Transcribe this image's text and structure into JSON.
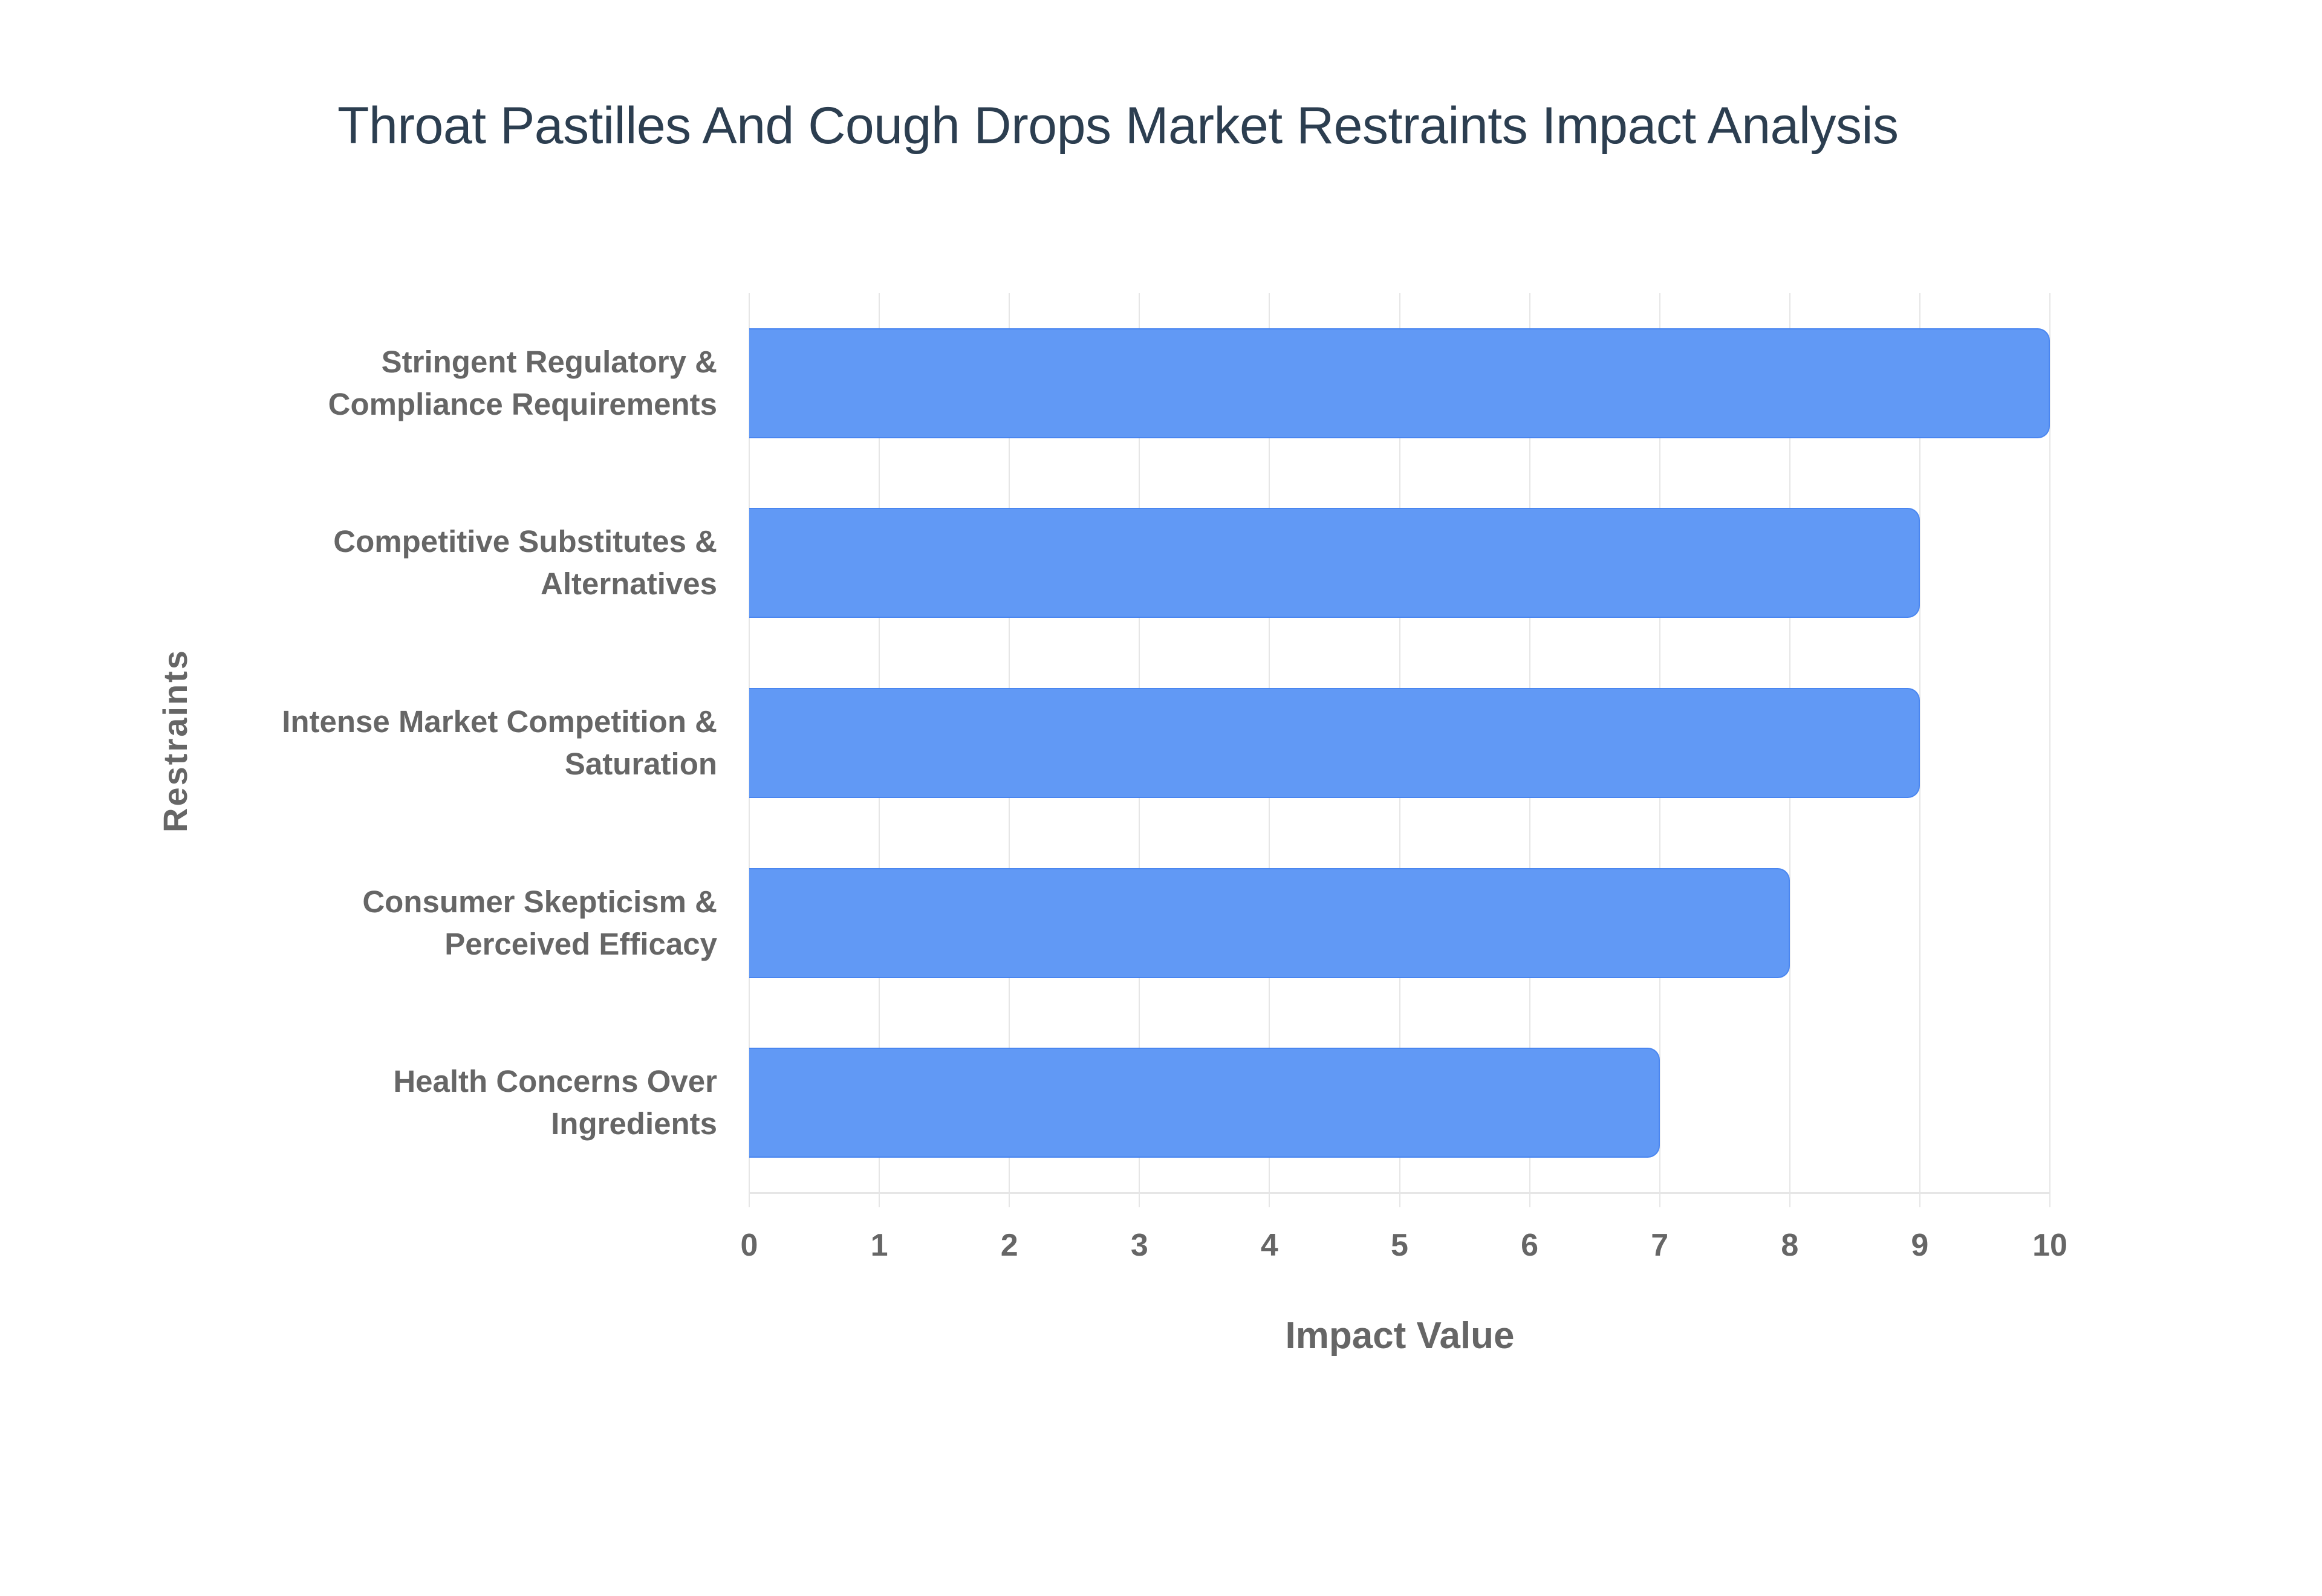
{
  "title": "Throat Pastilles And Cough Drops Market Restraints Impact Analysis",
  "colors": {
    "bar_fill": "#6199f5",
    "bar_border": "#4a86f0",
    "title": "#2c3e50",
    "axis_text": "#666666",
    "grid": "#e6e6e6"
  },
  "axes": {
    "x_title": "Impact Value",
    "y_title": "Restraints",
    "x_ticks": [
      "0",
      "1",
      "2",
      "3",
      "4",
      "5",
      "6",
      "7",
      "8",
      "9",
      "10"
    ]
  },
  "categories": [
    {
      "line1": "Stringent Regulatory &",
      "line2": "Compliance Requirements",
      "value": 10
    },
    {
      "line1": "Competitive Substitutes &",
      "line2": "Alternatives",
      "value": 9
    },
    {
      "line1": "Intense Market Competition &",
      "line2": "Saturation",
      "value": 9
    },
    {
      "line1": "Consumer Skepticism &",
      "line2": "Perceived Efficacy",
      "value": 8
    },
    {
      "line1": "Health Concerns Over",
      "line2": "Ingredients",
      "value": 7
    }
  ],
  "chart_data": {
    "type": "bar",
    "orientation": "horizontal",
    "title": "Throat Pastilles And Cough Drops Market Restraints Impact Analysis",
    "categories": [
      "Stringent Regulatory & Compliance Requirements",
      "Competitive Substitutes & Alternatives",
      "Intense Market Competition & Saturation",
      "Consumer Skepticism & Perceived Efficacy",
      "Health Concerns Over Ingredients"
    ],
    "values": [
      10,
      9,
      9,
      8,
      7
    ],
    "xlabel": "Impact Value",
    "ylabel": "Restraints",
    "xlim": [
      0,
      10
    ],
    "x_ticks": [
      0,
      1,
      2,
      3,
      4,
      5,
      6,
      7,
      8,
      9,
      10
    ],
    "grid": true,
    "legend": "none",
    "bar_color": "#6199f5"
  }
}
